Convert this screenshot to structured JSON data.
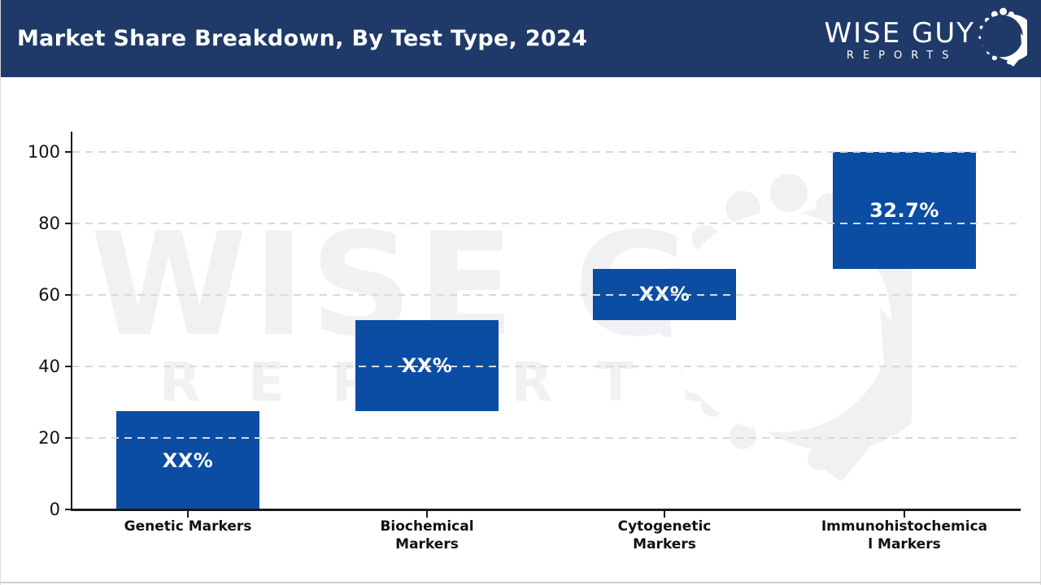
{
  "header": {
    "title": "Market Share Breakdown, By Test Type, 2024",
    "bg_color": "#1F3A68",
    "logo": {
      "name": "WISE GUY",
      "sub": "REPORTS"
    }
  },
  "watermark": {
    "line1": "WISE GUY",
    "line2": "REPORTS"
  },
  "chart_data": {
    "type": "bar",
    "subtype": "waterfall-floating-bars",
    "title": "Market Share Breakdown, By Test Type, 2024",
    "categories": [
      "Genetic Markers",
      "Biochemical\nMarkers",
      "Cytogenetic\nMarkers",
      "Immunohistochemica\nl Markers"
    ],
    "segments": [
      {
        "category": "Genetic Markers",
        "start": 0,
        "end": 27.4,
        "label": "XX%"
      },
      {
        "category": "Biochemical Markers",
        "start": 27.4,
        "end": 53.0,
        "label": "XX%"
      },
      {
        "category": "Cytogenetic Markers",
        "start": 53.0,
        "end": 67.3,
        "label": "XX%"
      },
      {
        "category": "Immunohistochemical Markers",
        "start": 67.3,
        "end": 100,
        "label": "32.7%"
      }
    ],
    "ylim": [
      0,
      100
    ],
    "yticks": [
      0,
      20,
      40,
      60,
      80,
      100
    ],
    "bar_color": "#0B4DA2",
    "bar_label_color": "#ffffff",
    "grid": "dashed horizontal, drawn over bars",
    "legend": "none",
    "xlabel": "",
    "ylabel": ""
  }
}
